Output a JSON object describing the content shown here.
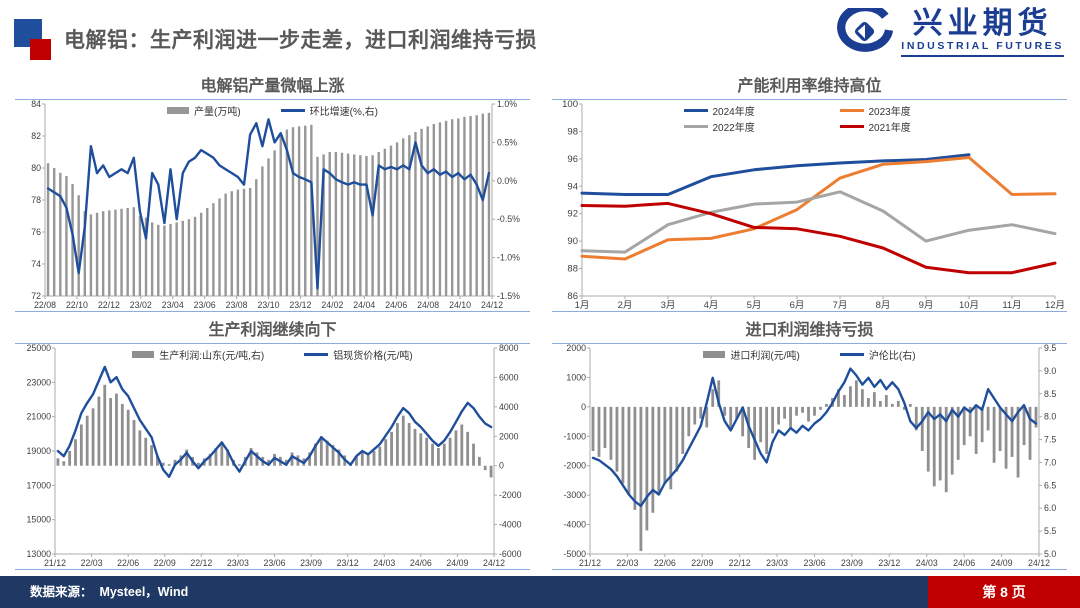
{
  "header": {
    "title": "电解铝：生产利润进一步走差，进口利润维持亏损",
    "logo": {
      "cn": "兴业期货",
      "en": "INDUSTRIAL FUTURES"
    }
  },
  "footer": {
    "source_label": "数据来源：  Mysteel，Wind",
    "page_label": "第 8 页"
  },
  "colors": {
    "blue": "#1F4E9C",
    "orange": "#ED7D31",
    "gray_line": "#A5A5A5",
    "red": "#C00000",
    "bar_gray": "#979797",
    "navy": "#1F3864",
    "logoblue": "#1B3E93",
    "rule": "#8FAADC",
    "titlegray": "#595959"
  },
  "chart_data": [
    {
      "type": "bar",
      "title": "电解铝产量微幅上涨",
      "legend_rows": [
        [
          {
            "label": "产量(万吨)",
            "swatch": "bar",
            "color": "#979797"
          },
          {
            "label": "环比增速(%,右)",
            "swatch": "line",
            "color": "#1F4E9C"
          }
        ]
      ],
      "x_ticks": [
        "22/08",
        "22/10",
        "22/12",
        "23/02",
        "23/04",
        "23/06",
        "23/08",
        "23/10",
        "23/12",
        "24/02",
        "24/04",
        "24/06",
        "24/08",
        "24/10",
        "24/12"
      ],
      "y_left": {
        "min": 72,
        "max": 84,
        "ticks": [
          84,
          82,
          80,
          78,
          76,
          74,
          72
        ],
        "labels": [
          "84",
          "82",
          "80",
          "78",
          "76",
          "74",
          "72"
        ]
      },
      "y_right": {
        "min": -1.5,
        "max": 1.0,
        "ticks": [
          1.0,
          0.5,
          0.0,
          -0.5,
          -1.0,
          -1.5
        ],
        "labels": [
          "1.0%",
          "0.5%",
          "0.0%",
          "-0.5%",
          "-1.0%",
          "-1.5%"
        ]
      },
      "bars": {
        "name": "产量(万吨)",
        "axis": "left",
        "baseline": 72,
        "color": "#979797",
        "values": [
          80.3,
          80.0,
          79.7,
          79.5,
          79.0,
          78.3,
          77.3,
          77.1,
          77.2,
          77.3,
          77.35,
          77.4,
          77.45,
          77.5,
          77.55,
          77.0,
          76.9,
          76.6,
          76.45,
          76.4,
          76.5,
          76.6,
          76.7,
          76.8,
          76.95,
          77.2,
          77.5,
          77.8,
          78.1,
          78.4,
          78.55,
          78.65,
          78.7,
          78.75,
          79.3,
          80.1,
          80.6,
          81.1,
          82.2,
          82.4,
          82.55,
          82.6,
          82.65,
          82.7,
          80.7,
          80.85,
          81.0,
          81.0,
          80.95,
          80.9,
          80.85,
          80.8,
          80.75,
          80.8,
          81.0,
          81.2,
          81.4,
          81.6,
          81.85,
          82.05,
          82.25,
          82.45,
          82.6,
          82.75,
          82.85,
          82.95,
          83.05,
          83.1,
          83.2,
          83.25,
          83.3,
          83.4,
          83.45
        ]
      },
      "lines": [
        {
          "name": "环比增速(%,右)",
          "axis": "right",
          "color": "#1F4E9C",
          "width": 2.4,
          "values": [
            -0.1,
            -0.15,
            -0.2,
            -0.35,
            -0.7,
            -1.2,
            -0.6,
            0.45,
            0.1,
            0.2,
            0.05,
            0.1,
            0.15,
            0.1,
            0.3,
            -0.4,
            -0.75,
            0.1,
            -0.05,
            -0.55,
            0.15,
            -0.5,
            0.1,
            0.25,
            0.3,
            0.4,
            0.35,
            0.3,
            0.2,
            0.15,
            0.1,
            0.05,
            -0.05,
            0.6,
            0.75,
            0.45,
            0.8,
            0.5,
            0.62,
            0.4,
            0.1,
            0.05,
            0.02,
            -0.02,
            -1.4,
            0.15,
            0.1,
            0.02,
            -0.02,
            -0.05,
            -0.02,
            -0.05,
            -0.05,
            -0.45,
            0.2,
            0.15,
            0.18,
            0.15,
            0.2,
            0.15,
            0.5,
            0.2,
            0.1,
            0.15,
            0.08,
            0.12,
            0.05,
            0.1,
            0.02,
            0.08,
            -0.05,
            -0.25,
            0.1
          ]
        }
      ]
    },
    {
      "type": "line",
      "title": "产能利用率维持高位",
      "legend_rows": [
        [
          {
            "label": "2024年度",
            "swatch": "line",
            "color": "#1F4E9C"
          },
          {
            "label": "2023年度",
            "swatch": "line",
            "color": "#ED7D31"
          }
        ],
        [
          {
            "label": "2022年度",
            "swatch": "line",
            "color": "#A5A5A5"
          },
          {
            "label": "2021年度",
            "swatch": "line",
            "color": "#C00000"
          }
        ]
      ],
      "x_ticks": [
        "1月",
        "2月",
        "3月",
        "4月",
        "5月",
        "6月",
        "7月",
        "8月",
        "9月",
        "10月",
        "11月",
        "12月"
      ],
      "y_left": {
        "min": 86,
        "max": 100,
        "ticks": [
          100,
          98,
          96,
          94,
          92,
          90,
          88,
          86
        ],
        "labels": [
          "100",
          "98",
          "96",
          "94",
          "92",
          "90",
          "88",
          "86"
        ]
      },
      "lines": [
        {
          "name": "2024年度",
          "axis": "left",
          "color": "#1F4E9C",
          "width": 3,
          "values": [
            93.5,
            93.4,
            93.4,
            94.7,
            95.2,
            95.5,
            95.7,
            95.85,
            95.95,
            96.3,
            null,
            null
          ]
        },
        {
          "name": "2023年度",
          "axis": "left",
          "color": "#ED7D31",
          "width": 3,
          "values": [
            88.9,
            88.7,
            90.1,
            90.2,
            90.9,
            92.3,
            94.6,
            95.6,
            95.8,
            96.1,
            93.4,
            93.45
          ]
        },
        {
          "name": "2022年度",
          "axis": "left",
          "color": "#A5A5A5",
          "width": 3,
          "values": [
            89.3,
            89.2,
            91.2,
            92.1,
            92.7,
            92.85,
            93.6,
            92.2,
            90.0,
            90.8,
            91.2,
            90.55
          ]
        },
        {
          "name": "2021年度",
          "axis": "left",
          "color": "#C00000",
          "width": 3,
          "values": [
            92.6,
            92.55,
            92.75,
            92.0,
            91.0,
            90.9,
            90.35,
            89.5,
            88.1,
            87.7,
            87.7,
            88.4
          ]
        }
      ]
    },
    {
      "type": "bar",
      "title": "生产利润继续向下",
      "legend_rows": [
        [
          {
            "label": "生产利润:山东(元/吨,右)",
            "swatch": "bar",
            "color": "#8F8F8F"
          },
          {
            "label": "铝现货价格(元/吨)",
            "swatch": "line",
            "color": "#1F4E9C"
          }
        ]
      ],
      "x_ticks": [
        "21/12",
        "22/03",
        "22/06",
        "22/09",
        "22/12",
        "23/03",
        "23/06",
        "23/09",
        "23/12",
        "24/03",
        "24/06",
        "24/09",
        "24/12"
      ],
      "y_left": {
        "min": 13000,
        "max": 25000,
        "ticks": [
          25000,
          23000,
          21000,
          19000,
          17000,
          15000,
          13000
        ],
        "labels": [
          "25000",
          "23000",
          "21000",
          "19000",
          "17000",
          "15000",
          "13000"
        ]
      },
      "y_right": {
        "min": -6000,
        "max": 8000,
        "ticks": [
          8000,
          6000,
          4000,
          2000,
          0,
          -2000,
          -4000,
          -6000
        ],
        "labels": [
          "8000",
          "6000",
          "4000",
          "2000",
          "0",
          "-2000",
          "-4000",
          "-6000"
        ]
      },
      "bars": {
        "name": "生产利润:山东(元/吨,右)",
        "axis": "right",
        "baseline": 0,
        "color": "#8F8F8F",
        "values": [
          500,
          300,
          1000,
          1800,
          2800,
          3400,
          3900,
          4700,
          5500,
          4600,
          4900,
          4200,
          3800,
          3100,
          2400,
          1900,
          1400,
          700,
          200,
          100,
          400,
          700,
          1100,
          600,
          200,
          500,
          800,
          1200,
          1600,
          1100,
          400,
          100,
          600,
          1200,
          900,
          600,
          400,
          800,
          600,
          400,
          900,
          700,
          500,
          900,
          1500,
          2000,
          1700,
          1400,
          1100,
          700,
          100,
          600,
          900,
          700,
          1000,
          1300,
          1800,
          2300,
          2900,
          3400,
          2900,
          2500,
          2200,
          1900,
          1500,
          1200,
          1500,
          1900,
          2400,
          2800,
          2300,
          1500,
          600,
          -300,
          -800
        ]
      },
      "lines": [
        {
          "name": "铝现货价格(元/吨)",
          "axis": "left",
          "color": "#1F4E9C",
          "width": 2.4,
          "values": [
            19000,
            18700,
            19300,
            20200,
            21200,
            21800,
            22300,
            23100,
            23900,
            23000,
            23300,
            22600,
            22200,
            21500,
            20800,
            20300,
            19800,
            18700,
            17900,
            17500,
            18200,
            18500,
            18900,
            18400,
            18000,
            18400,
            18700,
            19100,
            19500,
            19000,
            18300,
            17800,
            18400,
            19000,
            18700,
            18400,
            18200,
            18600,
            18400,
            18200,
            18700,
            18500,
            18300,
            18700,
            19300,
            19800,
            19500,
            19200,
            18900,
            18500,
            18200,
            18700,
            19000,
            18800,
            19100,
            19400,
            19900,
            20400,
            21000,
            21500,
            21200,
            20700,
            20400,
            20000,
            19600,
            19300,
            19600,
            20100,
            20700,
            21300,
            21800,
            21500,
            21000,
            20600,
            20400
          ]
        }
      ]
    },
    {
      "type": "bar",
      "title": "进口利润维持亏损",
      "legend_rows": [
        [
          {
            "label": "进口利润(元/吨)",
            "swatch": "bar",
            "color": "#8F8F8F"
          },
          {
            "label": "沪伦比(右)",
            "swatch": "line",
            "color": "#1F4E9C"
          }
        ]
      ],
      "x_ticks": [
        "21/12",
        "22/03",
        "22/06",
        "22/09",
        "22/12",
        "23/03",
        "23/06",
        "23/09",
        "23/12",
        "24/03",
        "24/06",
        "24/09",
        "24/12"
      ],
      "y_left": {
        "min": -5000,
        "max": 2000,
        "ticks": [
          2000,
          1000,
          0,
          -1000,
          -2000,
          -3000,
          -4000,
          -5000
        ],
        "labels": [
          "2000",
          "1000",
          "0",
          "-1000",
          "-2000",
          "-3000",
          "-4000",
          "-5000"
        ]
      },
      "y_right": {
        "min": 5.0,
        "max": 9.5,
        "ticks": [
          9.5,
          9.0,
          8.5,
          8.0,
          7.5,
          7.0,
          6.5,
          6.0,
          5.5,
          5.0
        ],
        "labels": [
          "9.5",
          "9.0",
          "8.5",
          "8.0",
          "7.5",
          "7.0",
          "6.5",
          "6.0",
          "5.5",
          "5.0"
        ]
      },
      "bars": {
        "name": "进口利润(元/吨)",
        "axis": "left",
        "baseline": 0,
        "color": "#8F8F8F",
        "values": [
          -1500,
          -1700,
          -1400,
          -1800,
          -2200,
          -2600,
          -3000,
          -3500,
          -4900,
          -4200,
          -3600,
          -3000,
          -2600,
          -2800,
          -2200,
          -1600,
          -1000,
          -600,
          -400,
          -700,
          600,
          900,
          -300,
          -800,
          -400,
          -1000,
          -1400,
          -1800,
          -1200,
          -1600,
          -900,
          -600,
          -400,
          -700,
          -300,
          -200,
          -500,
          -300,
          -100,
          100,
          300,
          600,
          400,
          700,
          900,
          600,
          300,
          500,
          200,
          400,
          100,
          200,
          -100,
          100,
          -800,
          -1500,
          -2200,
          -2700,
          -2500,
          -2900,
          -2300,
          -1800,
          -1300,
          -1000,
          -1600,
          -1200,
          -800,
          -1900,
          -1500,
          -2100,
          -1700,
          -2400,
          -1300,
          -1800,
          -700
        ]
      },
      "lines": [
        {
          "name": "沪伦比(右)",
          "axis": "right",
          "color": "#1F4E9C",
          "width": 2.4,
          "values": [
            7.1,
            7.05,
            6.95,
            6.85,
            6.7,
            6.5,
            6.3,
            6.15,
            6.05,
            6.25,
            6.4,
            6.3,
            6.55,
            6.7,
            6.85,
            7.05,
            7.3,
            7.55,
            7.8,
            8.3,
            8.85,
            8.3,
            7.9,
            7.7,
            7.95,
            8.2,
            7.8,
            7.5,
            7.2,
            7.0,
            7.45,
            7.7,
            7.6,
            7.75,
            7.65,
            7.8,
            7.7,
            7.85,
            7.95,
            8.1,
            8.3,
            8.55,
            8.75,
            9.05,
            8.9,
            8.7,
            8.85,
            8.65,
            8.8,
            8.6,
            8.75,
            8.6,
            8.3,
            7.9,
            7.75,
            7.9,
            8.1,
            7.95,
            8.05,
            7.9,
            8.15,
            8.0,
            8.2,
            8.1,
            8.25,
            8.15,
            8.6,
            8.4,
            8.2,
            8.05,
            7.9,
            8.1,
            8.25,
            7.95,
            7.85
          ]
        }
      ]
    }
  ]
}
